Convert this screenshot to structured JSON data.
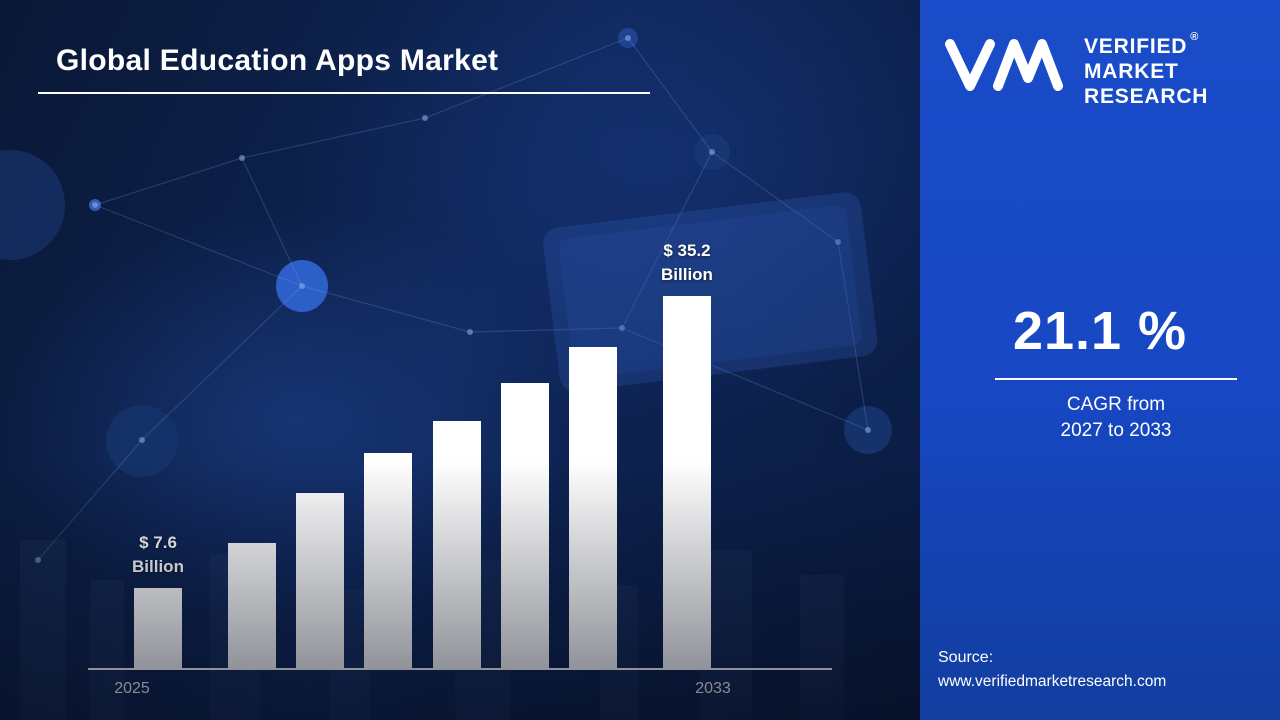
{
  "title": "Global Education Apps Market",
  "chart_data": {
    "type": "bar",
    "categories": [
      "2025",
      "",
      "",
      "",
      "",
      "",
      "",
      "2033"
    ],
    "values": [
      7.6,
      11.8,
      16.6,
      20.3,
      23.4,
      27.0,
      30.4,
      35.2
    ],
    "values_note": "only first and last values are labeled on the chart; intermediate values estimated from bar heights",
    "unit": "USD Billion",
    "ylim": [
      0,
      38
    ],
    "grid": false,
    "legend": "none",
    "bar_labels": [
      {
        "index": 0,
        "lines": [
          "$ 7.6",
          "Billion"
        ]
      },
      {
        "index": 7,
        "lines": [
          "$ 35.2",
          "Billion"
        ]
      }
    ],
    "title": "Global Education Apps Market"
  },
  "panel": {
    "logo": {
      "monogram": "VM",
      "lines": [
        "VERIFIED",
        "MARKET",
        "RESEARCH"
      ],
      "registered_mark": "®"
    },
    "cagr_value": "21.1 %",
    "cagr_caption_line1": "CAGR from",
    "cagr_caption_line2": "2027 to 2033",
    "source_label": "Source:",
    "source_url": "www.verifiedmarketresearch.com"
  },
  "colors": {
    "panel_bg": "#1747c2",
    "main_bg_dark": "#0a1836",
    "main_bg_mid": "#0e2556",
    "bar": "#ffffff",
    "text": "#ffffff"
  }
}
